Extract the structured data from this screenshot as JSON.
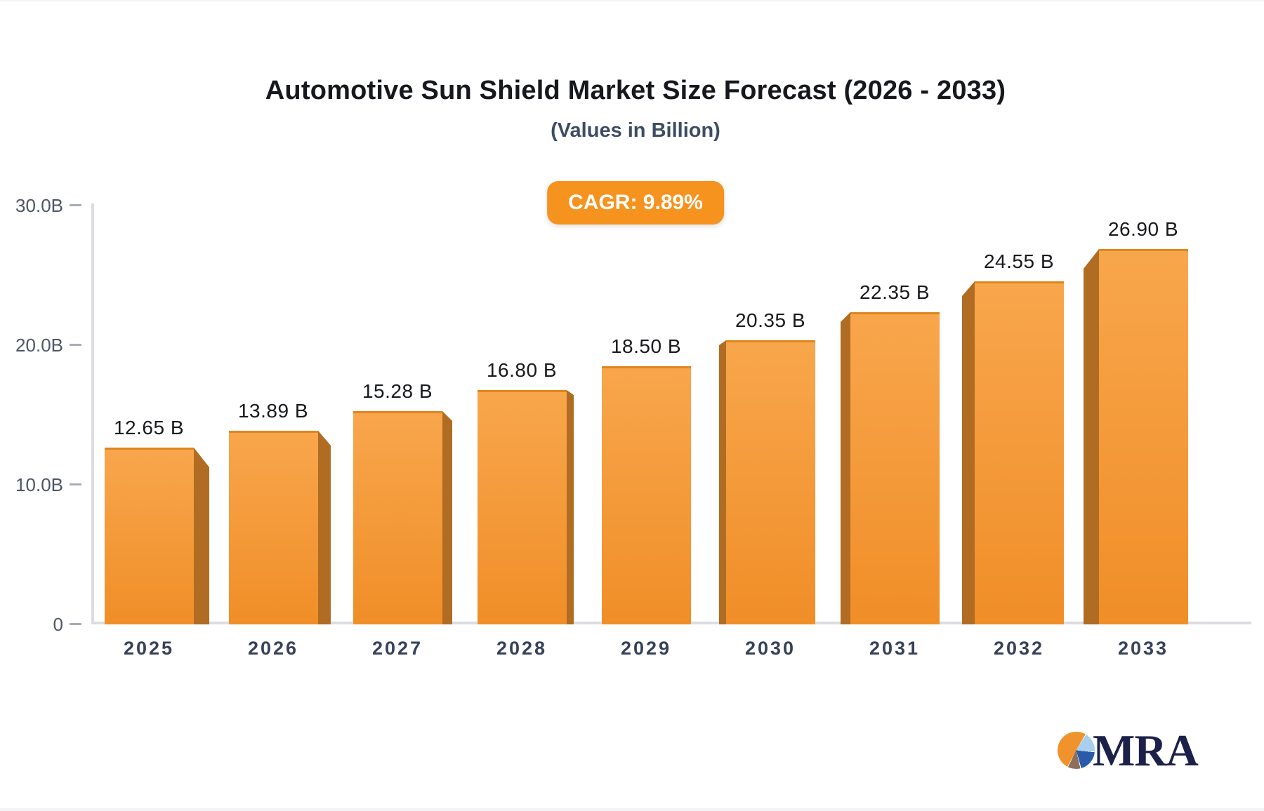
{
  "chart_data": {
    "type": "bar",
    "title": "Automotive Sun Shield Market Size Forecast (2026 - 2033)",
    "subtitle": "(Values in Billion)",
    "badge_label": "CAGR: 9.89%",
    "categories": [
      "2025",
      "2026",
      "2027",
      "2028",
      "2029",
      "2030",
      "2031",
      "2032",
      "2033"
    ],
    "values": [
      12.65,
      13.89,
      15.28,
      16.8,
      18.5,
      20.35,
      22.35,
      24.55,
      26.9
    ],
    "value_labels": [
      "12.65 B",
      "13.89 B",
      "15.28 B",
      "16.80 B",
      "18.50 B",
      "20.35 B",
      "22.35 B",
      "24.55 B",
      "26.90 B"
    ],
    "unit": "Billion USD",
    "y_ticks": [
      {
        "label": "30.0B",
        "value": 30
      },
      {
        "label": "20.0B",
        "value": 20
      },
      {
        "label": "10.0B",
        "value": 10
      },
      {
        "label": "0",
        "value": 0
      }
    ],
    "ylim": [
      0,
      30
    ],
    "grid": false,
    "legend": false,
    "bar_style": "3d-perspective",
    "colors": {
      "bar_front_top": "#F8A64C",
      "bar_front_bottom": "#F08E28",
      "bar_top_edge": "#DF861F",
      "bar_side": "#B06C22",
      "badge_bg": "#F6921E",
      "title_text": "#16181D",
      "subtitle_text": "#3D4C63",
      "value_label_text": "#17191C",
      "x_label_text": "#36415A",
      "y_label_text": "#4C5666",
      "axis_line": "#DBDDE2",
      "tick_dash": "#A7ADB8"
    }
  },
  "logo": {
    "text": "MRA",
    "text_color": "#1B2148",
    "pie_colors": {
      "orange": "#F0932C",
      "light_blue": "#A8CFEE",
      "dark_blue": "#2A5BA8",
      "brown": "#8D6F5C"
    }
  }
}
